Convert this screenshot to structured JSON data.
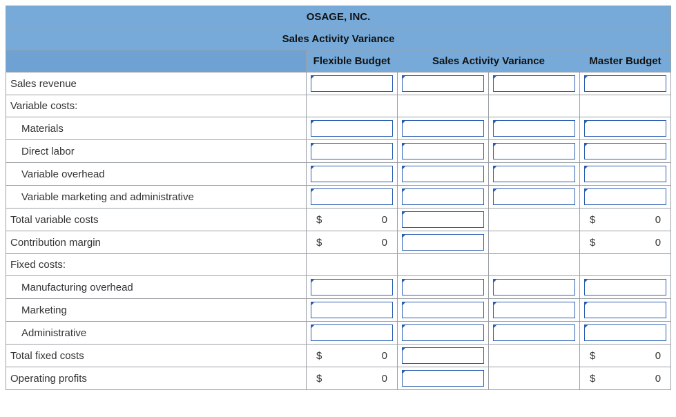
{
  "colors": {
    "header_bg": "#77aad9",
    "header_bg_dark": "#6fa2d2",
    "border": "#9aa0a6",
    "input_border": "#2a5db0",
    "text": "#333333"
  },
  "title": "OSAGE, INC.",
  "subtitle": "Sales Activity Variance",
  "columns": {
    "col1": "Flexible Budget",
    "col2": "Sales Activity Variance",
    "col3": "Master Budget"
  },
  "currency": "$",
  "rows": {
    "sales_revenue": {
      "label": "Sales revenue",
      "indent": false,
      "cells": [
        "input",
        "input",
        "input",
        "input"
      ]
    },
    "variable_hdr": {
      "label": "Variable costs:",
      "indent": false,
      "cells": [
        "blank",
        "blank",
        "blank",
        "blank"
      ]
    },
    "materials": {
      "label": "Materials",
      "indent": true,
      "cells": [
        "input",
        "input",
        "input",
        "input"
      ]
    },
    "direct_labor": {
      "label": "Direct labor",
      "indent": true,
      "cells": [
        "input",
        "input",
        "input",
        "input"
      ]
    },
    "var_overhead": {
      "label": "Variable overhead",
      "indent": true,
      "cells": [
        "input",
        "input",
        "input",
        "input"
      ]
    },
    "var_mkt_admin": {
      "label": "Variable marketing and administrative",
      "indent": true,
      "cells": [
        "input",
        "input",
        "input",
        "input"
      ]
    },
    "total_var": {
      "label": "Total variable costs",
      "indent": false,
      "cells": [
        "computed",
        "input",
        "blank",
        "computed"
      ],
      "flex_val": "0",
      "master_val": "0"
    },
    "contrib_margin": {
      "label": "Contribution margin",
      "indent": false,
      "cells": [
        "computed",
        "input",
        "blank",
        "computed"
      ],
      "flex_val": "0",
      "master_val": "0"
    },
    "fixed_hdr": {
      "label": "Fixed costs:",
      "indent": false,
      "cells": [
        "blank",
        "blank",
        "blank",
        "blank"
      ]
    },
    "mfg_overhead": {
      "label": "Manufacturing overhead",
      "indent": true,
      "cells": [
        "input",
        "input",
        "input",
        "input"
      ]
    },
    "marketing": {
      "label": "Marketing",
      "indent": true,
      "cells": [
        "input",
        "input",
        "input",
        "input"
      ]
    },
    "administrative": {
      "label": "Administrative",
      "indent": true,
      "cells": [
        "input",
        "input",
        "input",
        "input"
      ]
    },
    "total_fixed": {
      "label": "Total fixed costs",
      "indent": false,
      "cells": [
        "computed",
        "input",
        "blank",
        "computed"
      ],
      "flex_val": "0",
      "master_val": "0"
    },
    "op_profits": {
      "label": "Operating profits",
      "indent": false,
      "cells": [
        "computed",
        "input",
        "blank",
        "computed"
      ],
      "flex_val": "0",
      "master_val": "0"
    }
  },
  "row_order": [
    "sales_revenue",
    "variable_hdr",
    "materials",
    "direct_labor",
    "var_overhead",
    "var_mkt_admin",
    "total_var",
    "contrib_margin",
    "fixed_hdr",
    "mfg_overhead",
    "marketing",
    "administrative",
    "total_fixed",
    "op_profits"
  ]
}
